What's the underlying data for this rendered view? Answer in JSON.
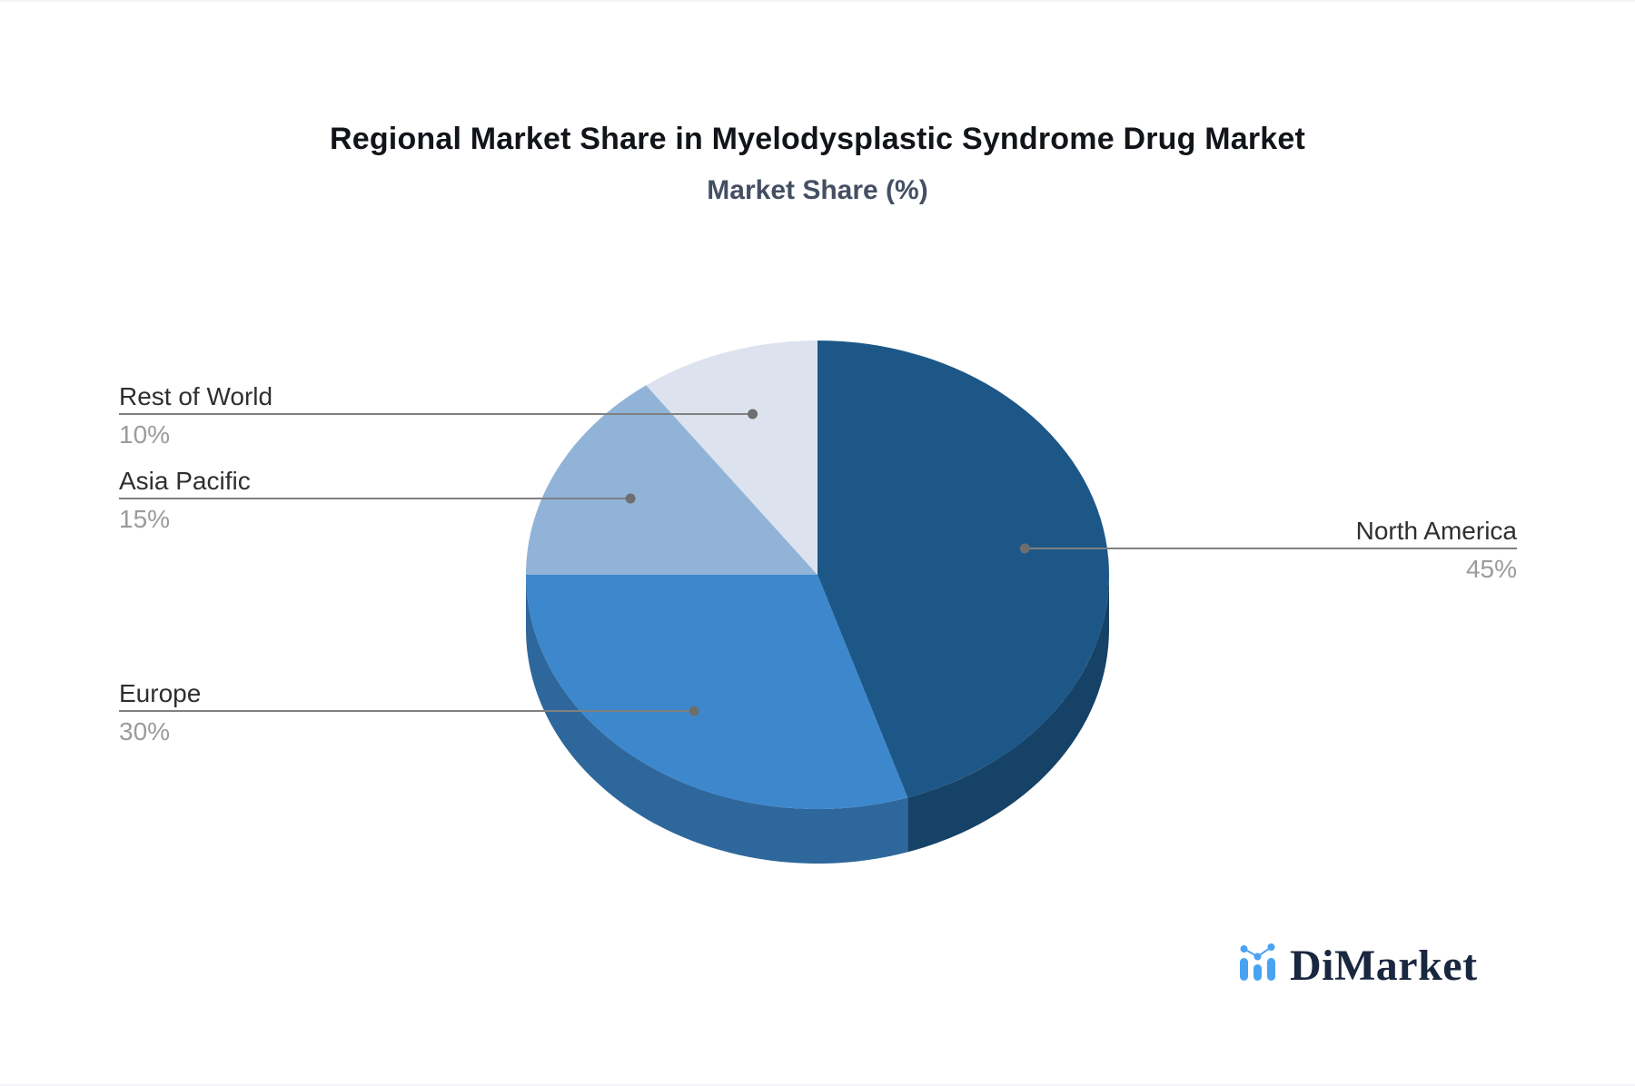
{
  "page": {
    "title": "Regional Market Share in Myelodysplastic Syndrome Drug Market",
    "subtitle": "Market Share (%)",
    "background_color": "#ffffff"
  },
  "chart_data": {
    "type": "pie",
    "title": "Regional Market Share in Myelodysplastic Syndrome Drug Market",
    "subtitle": "Market Share (%)",
    "unit": "%",
    "style_3d": true,
    "start_angle_deg": 0,
    "direction": "clockwise",
    "legend_position": "callout-labels",
    "slices": [
      {
        "label": "North America",
        "value": 45,
        "display": "45%",
        "color": "#1D5787"
      },
      {
        "label": "Europe",
        "value": 30,
        "display": "30%",
        "color": "#3D87CC"
      },
      {
        "label": "Asia Pacific",
        "value": 15,
        "display": "15%",
        "color": "#91B3D8"
      },
      {
        "label": "Rest of World",
        "value": 10,
        "display": "10%",
        "color": "#DCE3EE"
      }
    ],
    "colors": {
      "label_name": "#2F2F2F",
      "label_value": "#9B9B9B",
      "leader_line": "#808080",
      "leader_dot": "#6E6E6E"
    }
  },
  "brand": {
    "name": "DiMarket",
    "icon": "bar-line-chart-icon",
    "icon_color": "#4AA2F3",
    "text_color": "#1A2740"
  }
}
